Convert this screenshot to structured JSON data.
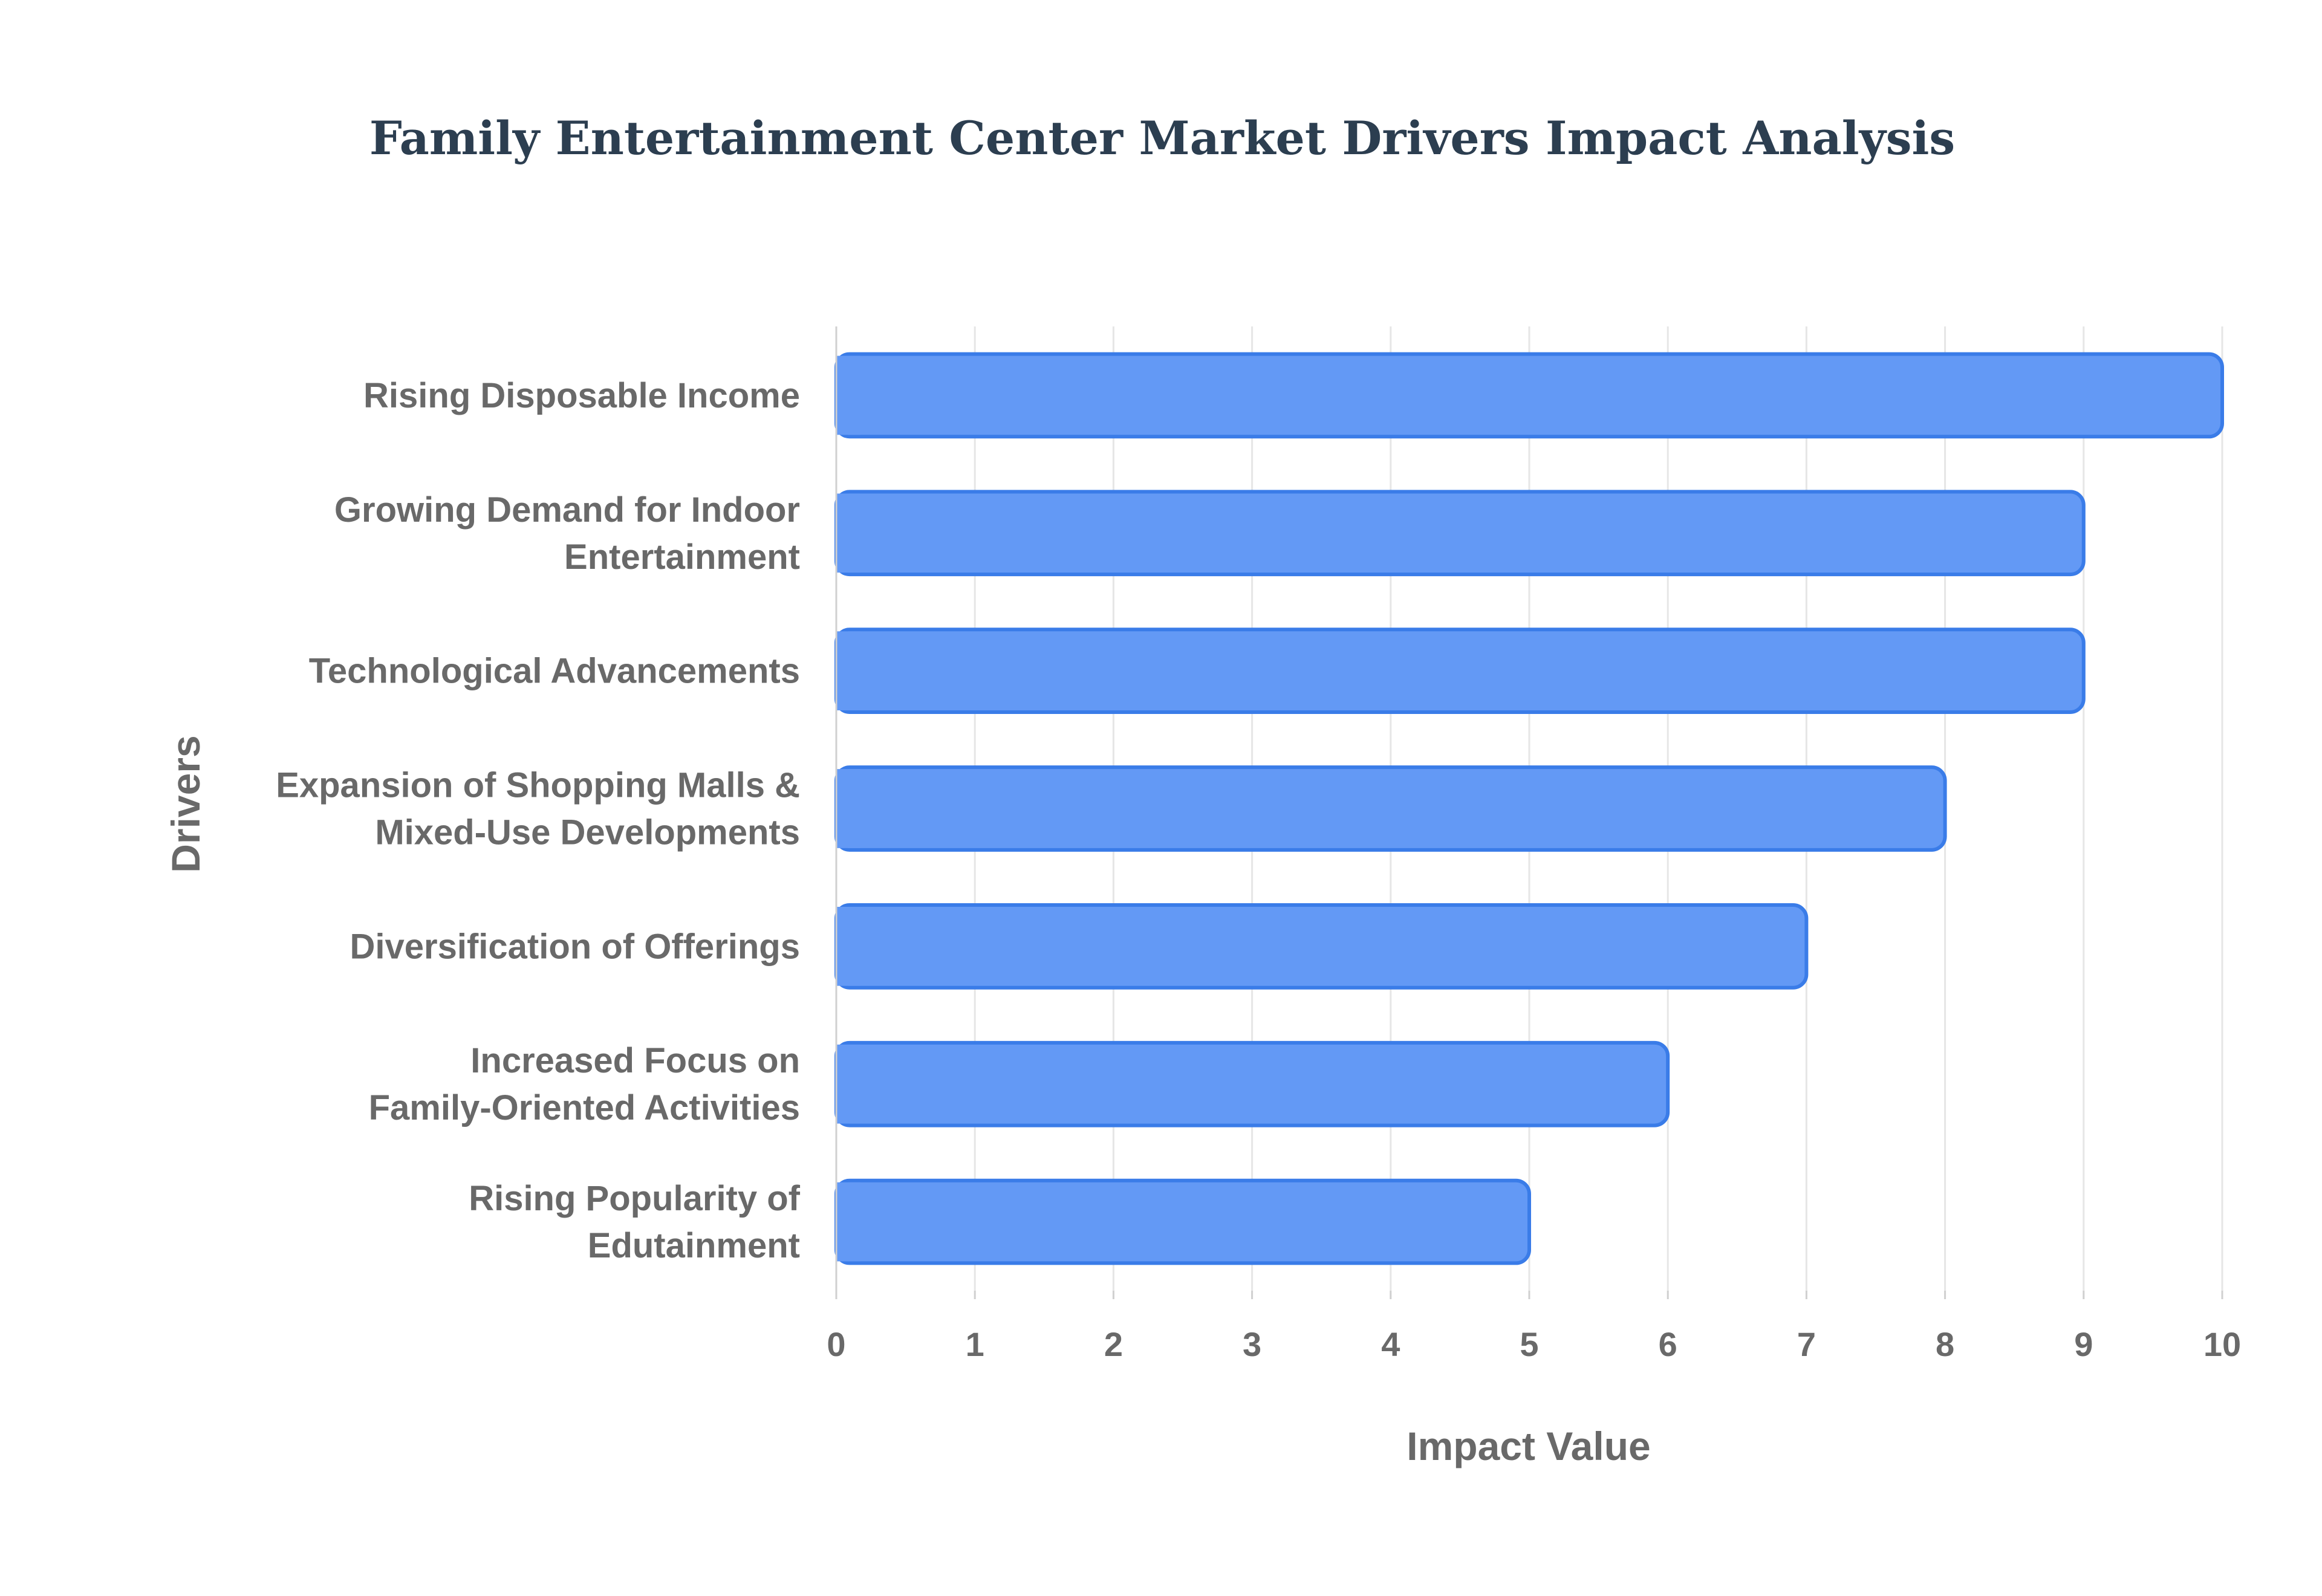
{
  "chart_data": {
    "type": "bar",
    "orientation": "horizontal",
    "title": "Family Entertainment Center Market Drivers Impact Analysis",
    "xlabel": "Impact Value",
    "ylabel": "Drivers",
    "xlim": [
      0,
      10
    ],
    "xticks": [
      "0",
      "1",
      "2",
      "3",
      "4",
      "5",
      "6",
      "7",
      "8",
      "9",
      "10"
    ],
    "grid": true,
    "legend": "none",
    "categories": [
      [
        "Rising Disposable Income"
      ],
      [
        "Growing Demand for Indoor",
        "Entertainment"
      ],
      [
        "Technological Advancements"
      ],
      [
        "Expansion of Shopping Malls &",
        "Mixed-Use Developments"
      ],
      [
        "Diversification of Offerings"
      ],
      [
        "Increased Focus on",
        "Family-Oriented Activities"
      ],
      [
        "Rising Popularity of",
        "Edutainment"
      ]
    ],
    "values": [
      10,
      9,
      9,
      8,
      7,
      6,
      5
    ]
  },
  "colors": {
    "bar_fill": "#6399f5",
    "bar_stroke": "#3a7ce8",
    "title": "#2c3e50",
    "axis_text": "#696969",
    "grid": "#e6e6e6",
    "axis_line": "#d0d0d0"
  }
}
